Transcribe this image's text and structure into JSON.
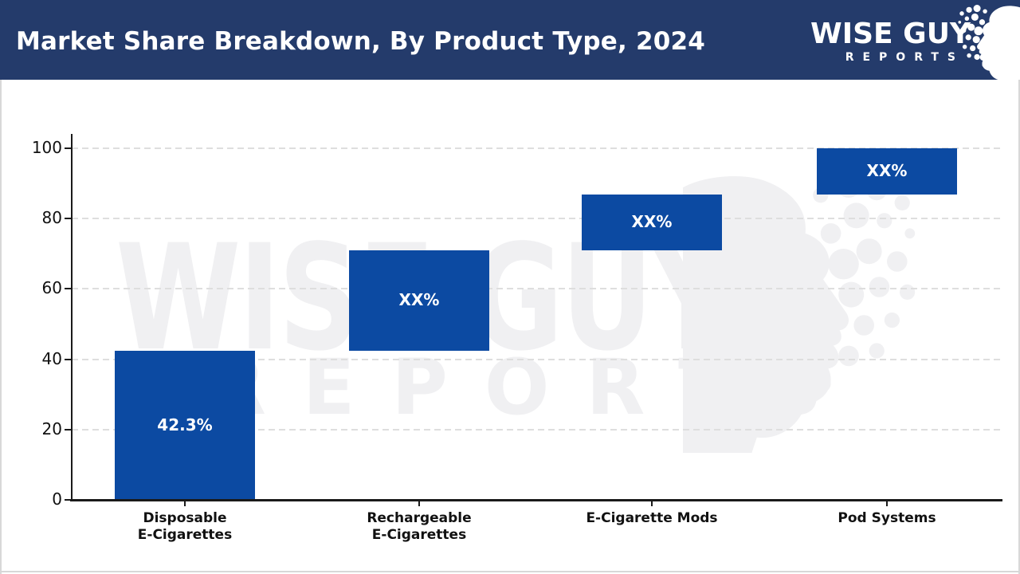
{
  "header": {
    "title": "Market Share Breakdown, By Product Type, 2024",
    "logo": {
      "line1": "WISE GUY",
      "line2": "REPORTS"
    },
    "bg_color": "#243B6B"
  },
  "watermark": {
    "line1": "WISE GUY",
    "line2": "REPORTS"
  },
  "chart_data": {
    "type": "bar",
    "variant": "waterfall",
    "title": "Market Share Breakdown, By Product Type, 2024",
    "categories": [
      "Disposable E-Cigarettes",
      "Rechargeable E-Cigarettes",
      "E-Cigarette Mods",
      "Pod Systems"
    ],
    "category_label_lines": [
      [
        "Disposable",
        "E-Cigarettes"
      ],
      [
        "Rechargeable",
        "E-Cigarettes"
      ],
      [
        "E-Cigarette Mods"
      ],
      [
        "Pod Systems"
      ]
    ],
    "segments": [
      {
        "category": "Disposable E-Cigarettes",
        "start": 0,
        "end": 42.3,
        "label": "42.3%"
      },
      {
        "category": "Rechargeable E-Cigarettes",
        "start": 42.3,
        "end": 71,
        "label": "XX%"
      },
      {
        "category": "E-Cigarette Mods",
        "start": 71,
        "end": 86.8,
        "label": "XX%"
      },
      {
        "category": "Pod Systems",
        "start": 86.8,
        "end": 100,
        "label": "XX%"
      }
    ],
    "ylim": [
      0,
      100
    ],
    "yticks": [
      0,
      20,
      40,
      60,
      80,
      100
    ],
    "xlabel": "",
    "ylabel": "",
    "legend": "none",
    "grid": {
      "horizontal": true,
      "style": "dashed",
      "color": "#dedede"
    },
    "bar_color": "#0C4AA2",
    "bar_label_color": "#ffffff",
    "axis_color": "#1a1a1a"
  }
}
